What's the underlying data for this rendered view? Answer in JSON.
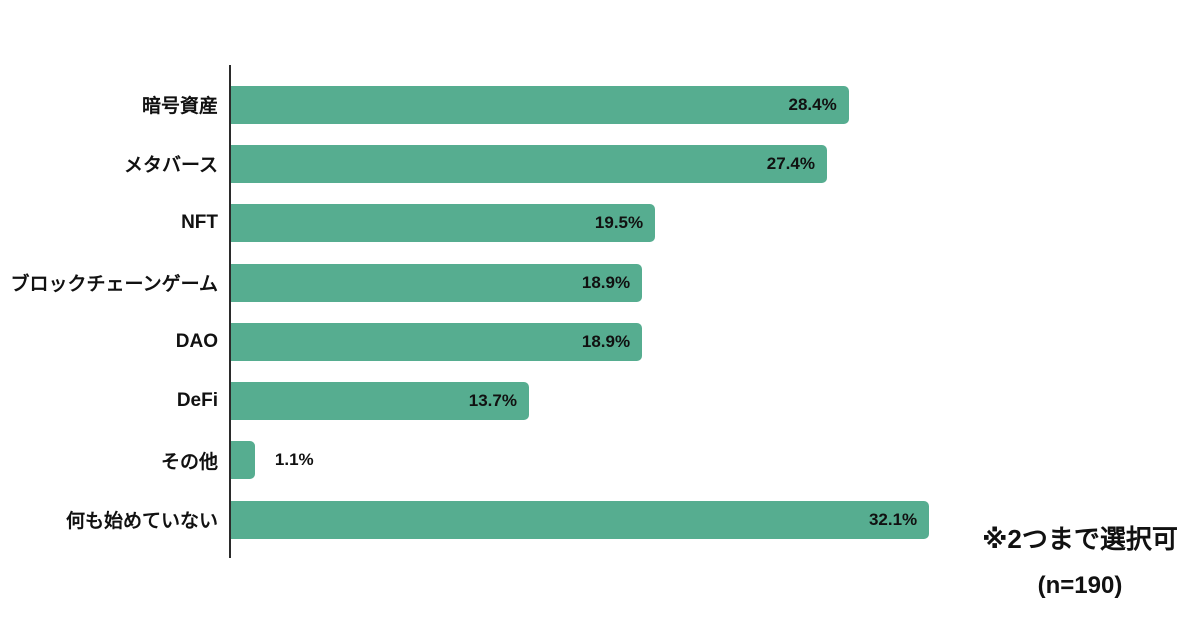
{
  "chart_data": {
    "type": "bar",
    "orientation": "horizontal",
    "title": "",
    "xlabel": "",
    "ylabel": "",
    "categories": [
      "暗号資産",
      "メタバース",
      "NFT",
      "ブロックチェーンゲーム",
      "DAO",
      "DeFi",
      "その他",
      "何も始めていない"
    ],
    "values": [
      28.4,
      27.4,
      19.5,
      18.9,
      18.9,
      13.7,
      1.1,
      32.1
    ],
    "value_labels": [
      "28.4%",
      "27.4%",
      "19.5%",
      "18.9%",
      "18.9%",
      "13.7%",
      "1.1%",
      "32.1%"
    ],
    "unit": "%",
    "xlim": [
      0,
      44
    ],
    "grid": false,
    "legend": null,
    "bar_color": "#56ad90",
    "axis_color": "#2b2b2b",
    "label_color": "#111111"
  },
  "annotations": {
    "note_line1": "※2つまで選択可",
    "note_line2": "(n=190)"
  }
}
